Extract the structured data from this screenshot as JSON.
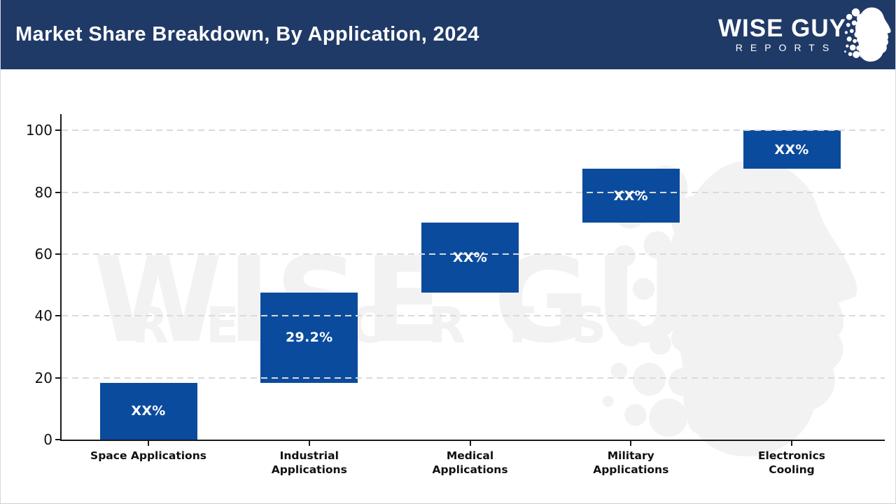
{
  "header": {
    "title": "Market Share Breakdown, By Application, 2024",
    "logo": {
      "line1": "WISE GUY",
      "line2": "REPORTS"
    }
  },
  "watermark": {
    "line1": "WISE GUY",
    "line2": "REPORTS"
  },
  "colors": {
    "header_bg": "#203a67",
    "bar": "#0b4b9d",
    "bar_label": "#ffffff",
    "grid": "#dadada",
    "axis": "#1a1a1a",
    "watermark": "#f2f2f2"
  },
  "chart_data": {
    "type": "bar",
    "subtype": "waterfall",
    "title": "Market Share Breakdown, By Application, 2024",
    "xlabel": "",
    "ylabel": "",
    "ylim": [
      0,
      105
    ],
    "yticks": [
      0,
      20,
      40,
      60,
      80,
      100
    ],
    "grid": true,
    "legend": "none",
    "categories": [
      "Space Applications",
      "Industrial\nApplications",
      "Medical\nApplications",
      "Military\nApplications",
      "Electronics\nCooling"
    ],
    "values": [
      18.4,
      29.2,
      22.5,
      17.6,
      12.3
    ],
    "segments": [
      {
        "start": 0,
        "end": 18.4,
        "label": "XX%"
      },
      {
        "start": 18.4,
        "end": 47.6,
        "label": "29.2%"
      },
      {
        "start": 47.6,
        "end": 70.1,
        "label": "XX%"
      },
      {
        "start": 70.1,
        "end": 87.7,
        "label": "XX%"
      },
      {
        "start": 87.7,
        "end": 100,
        "label": "XX%"
      }
    ]
  }
}
